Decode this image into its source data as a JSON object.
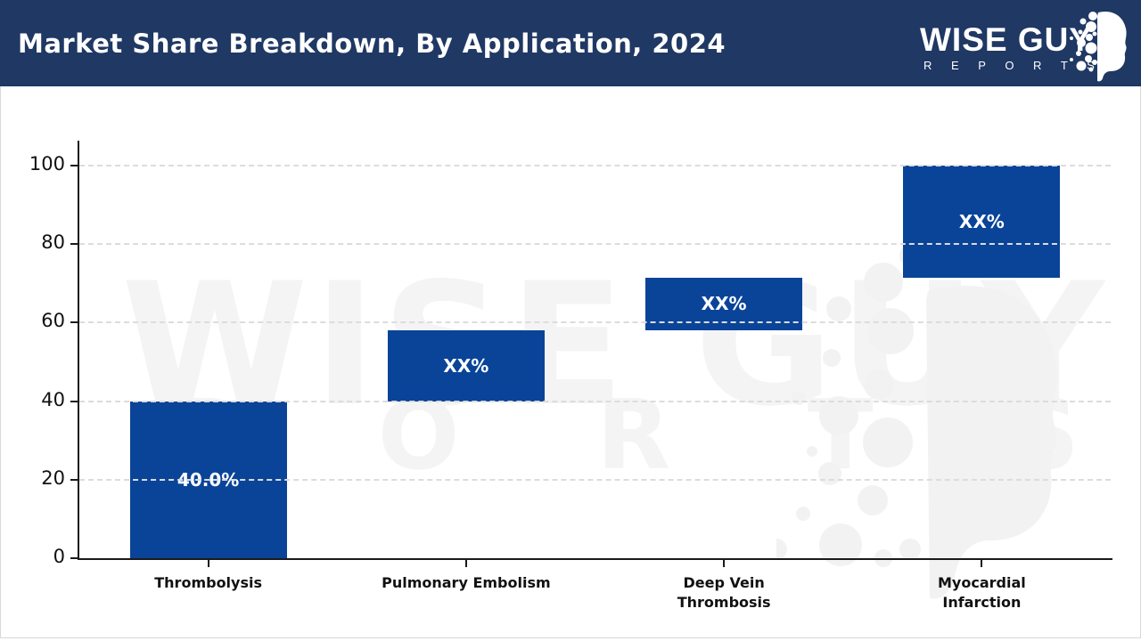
{
  "header": {
    "title": "Market Share Breakdown, By Application, 2024",
    "bg_color": "#1f3864",
    "logo": {
      "wordmark": "WISE GUY",
      "subtext": "R E P O R T S"
    }
  },
  "watermark": {
    "wordmark": "WISE GUY",
    "subtext": "P O R T S"
  },
  "chart_data": {
    "type": "bar",
    "subtype": "waterfall",
    "title": "Market Share Breakdown, By Application, 2024",
    "xlabel": "",
    "ylabel": "",
    "categories": [
      "Thrombolysis",
      "Pulmonary Embolism",
      "Deep Vein\nThrombosis",
      "Myocardial\nInfarction"
    ],
    "bars": [
      {
        "category": "Thrombolysis",
        "start": 0,
        "end": 40,
        "value": 40.0,
        "label": "40.0%"
      },
      {
        "category": "Pulmonary Embolism",
        "start": 40,
        "end": 58,
        "value": 18,
        "label": "XX%"
      },
      {
        "category": "Deep Vein Thrombosis",
        "start": 58,
        "end": 71.5,
        "value": 13.5,
        "label": "XX%"
      },
      {
        "category": "Myocardial Infarction",
        "start": 71.5,
        "end": 100,
        "value": 28.5,
        "label": "XX%"
      }
    ],
    "yticks": [
      0,
      20,
      40,
      60,
      80,
      100
    ],
    "ylim": [
      0,
      100
    ],
    "grid": "dashed-horizontal",
    "legend": "none",
    "bar_color": "#0a4499",
    "label_color": "#ffffff"
  }
}
